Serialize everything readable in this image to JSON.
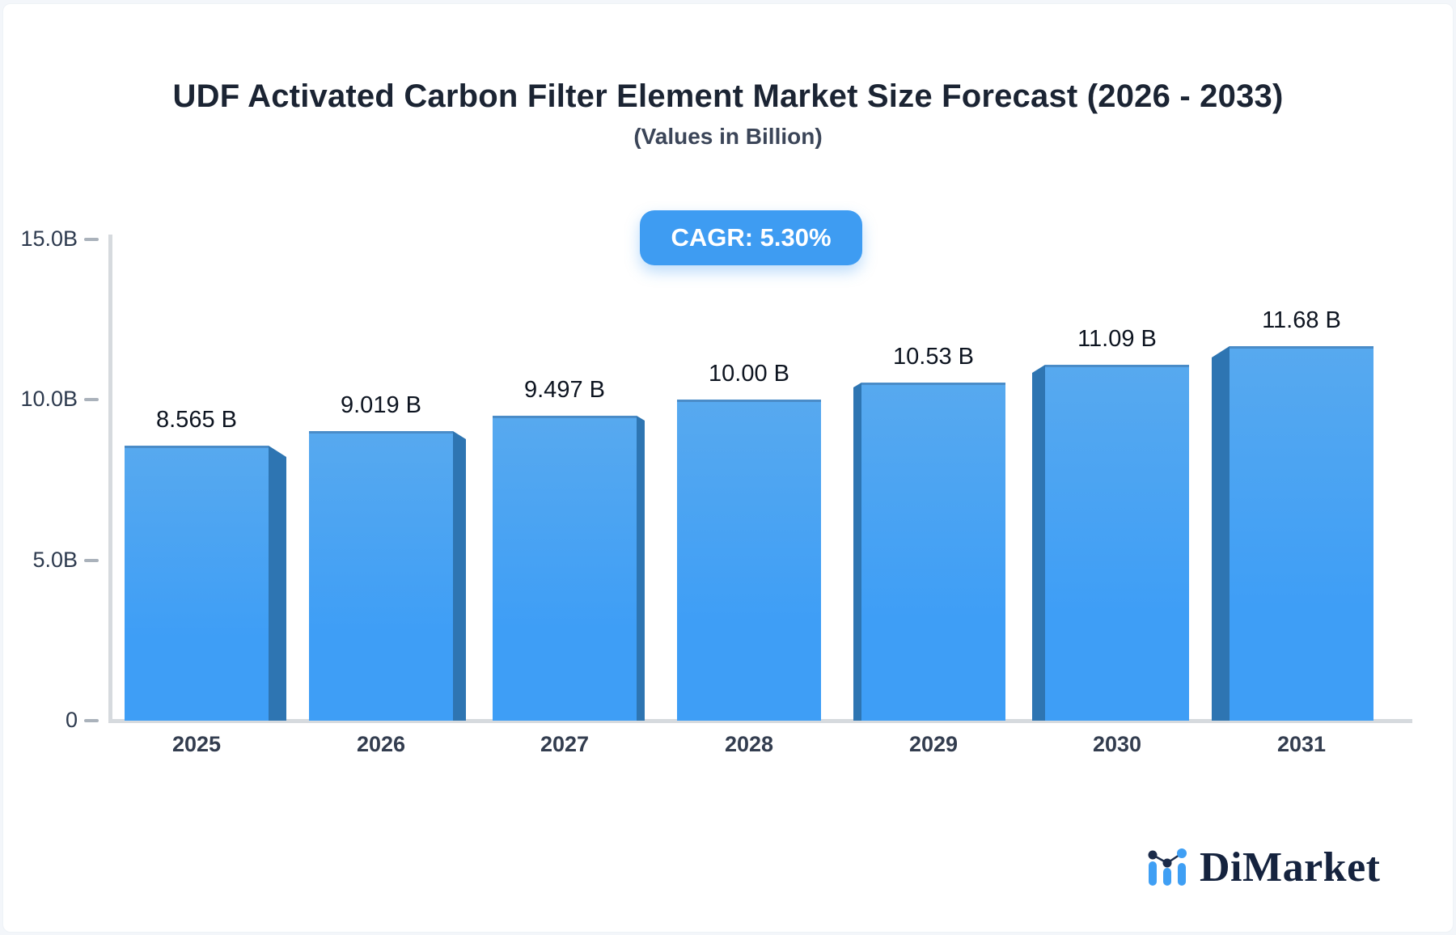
{
  "header": {
    "title": "UDF Activated Carbon Filter Element Market Size Forecast (2026 - 2033)",
    "subtitle": "(Values in Billion)",
    "badge_label": "CAGR: 5.30%"
  },
  "chart_data": {
    "type": "bar",
    "title": "UDF Activated Carbon Filter Element Market Size Forecast (2026 - 2033)",
    "subtitle": "(Values in Billion)",
    "cagr_label": "CAGR: 5.30%",
    "unit": "Billion",
    "categories": [
      "2025",
      "2026",
      "2027",
      "2028",
      "2029",
      "2030",
      "2031"
    ],
    "values": [
      8.565,
      9.019,
      9.497,
      10.0,
      10.53,
      11.09,
      11.68
    ],
    "value_labels": [
      "8.565 B",
      "9.019 B",
      "9.497 B",
      "10.00 B",
      "10.53 B",
      "11.09 B",
      "11.68 B"
    ],
    "xlabel": "",
    "ylabel": "",
    "ylim": [
      0,
      15
    ],
    "yticks": [
      {
        "value": 0,
        "label": "0"
      },
      {
        "value": 5,
        "label": "5.0B"
      },
      {
        "value": 10,
        "label": "10.0B"
      },
      {
        "value": 15,
        "label": "15.0B"
      }
    ],
    "grid": false,
    "legend": false,
    "style": "3d-perspective-bars"
  },
  "colors": {
    "badge_bg": "#3e9cf2",
    "bar_face_top": "#57a9ef",
    "bar_face_bottom": "#3e9ef6",
    "bar_side": "#2e75b2",
    "bar_top_edge": "#4a8cc8",
    "axis": "#d6dade",
    "logo_blue": "#3f9ff4",
    "logo_navy": "#1b2b4a"
  },
  "logo": {
    "brand": "DiMarket",
    "icon": "bar-line-chart-icon"
  }
}
